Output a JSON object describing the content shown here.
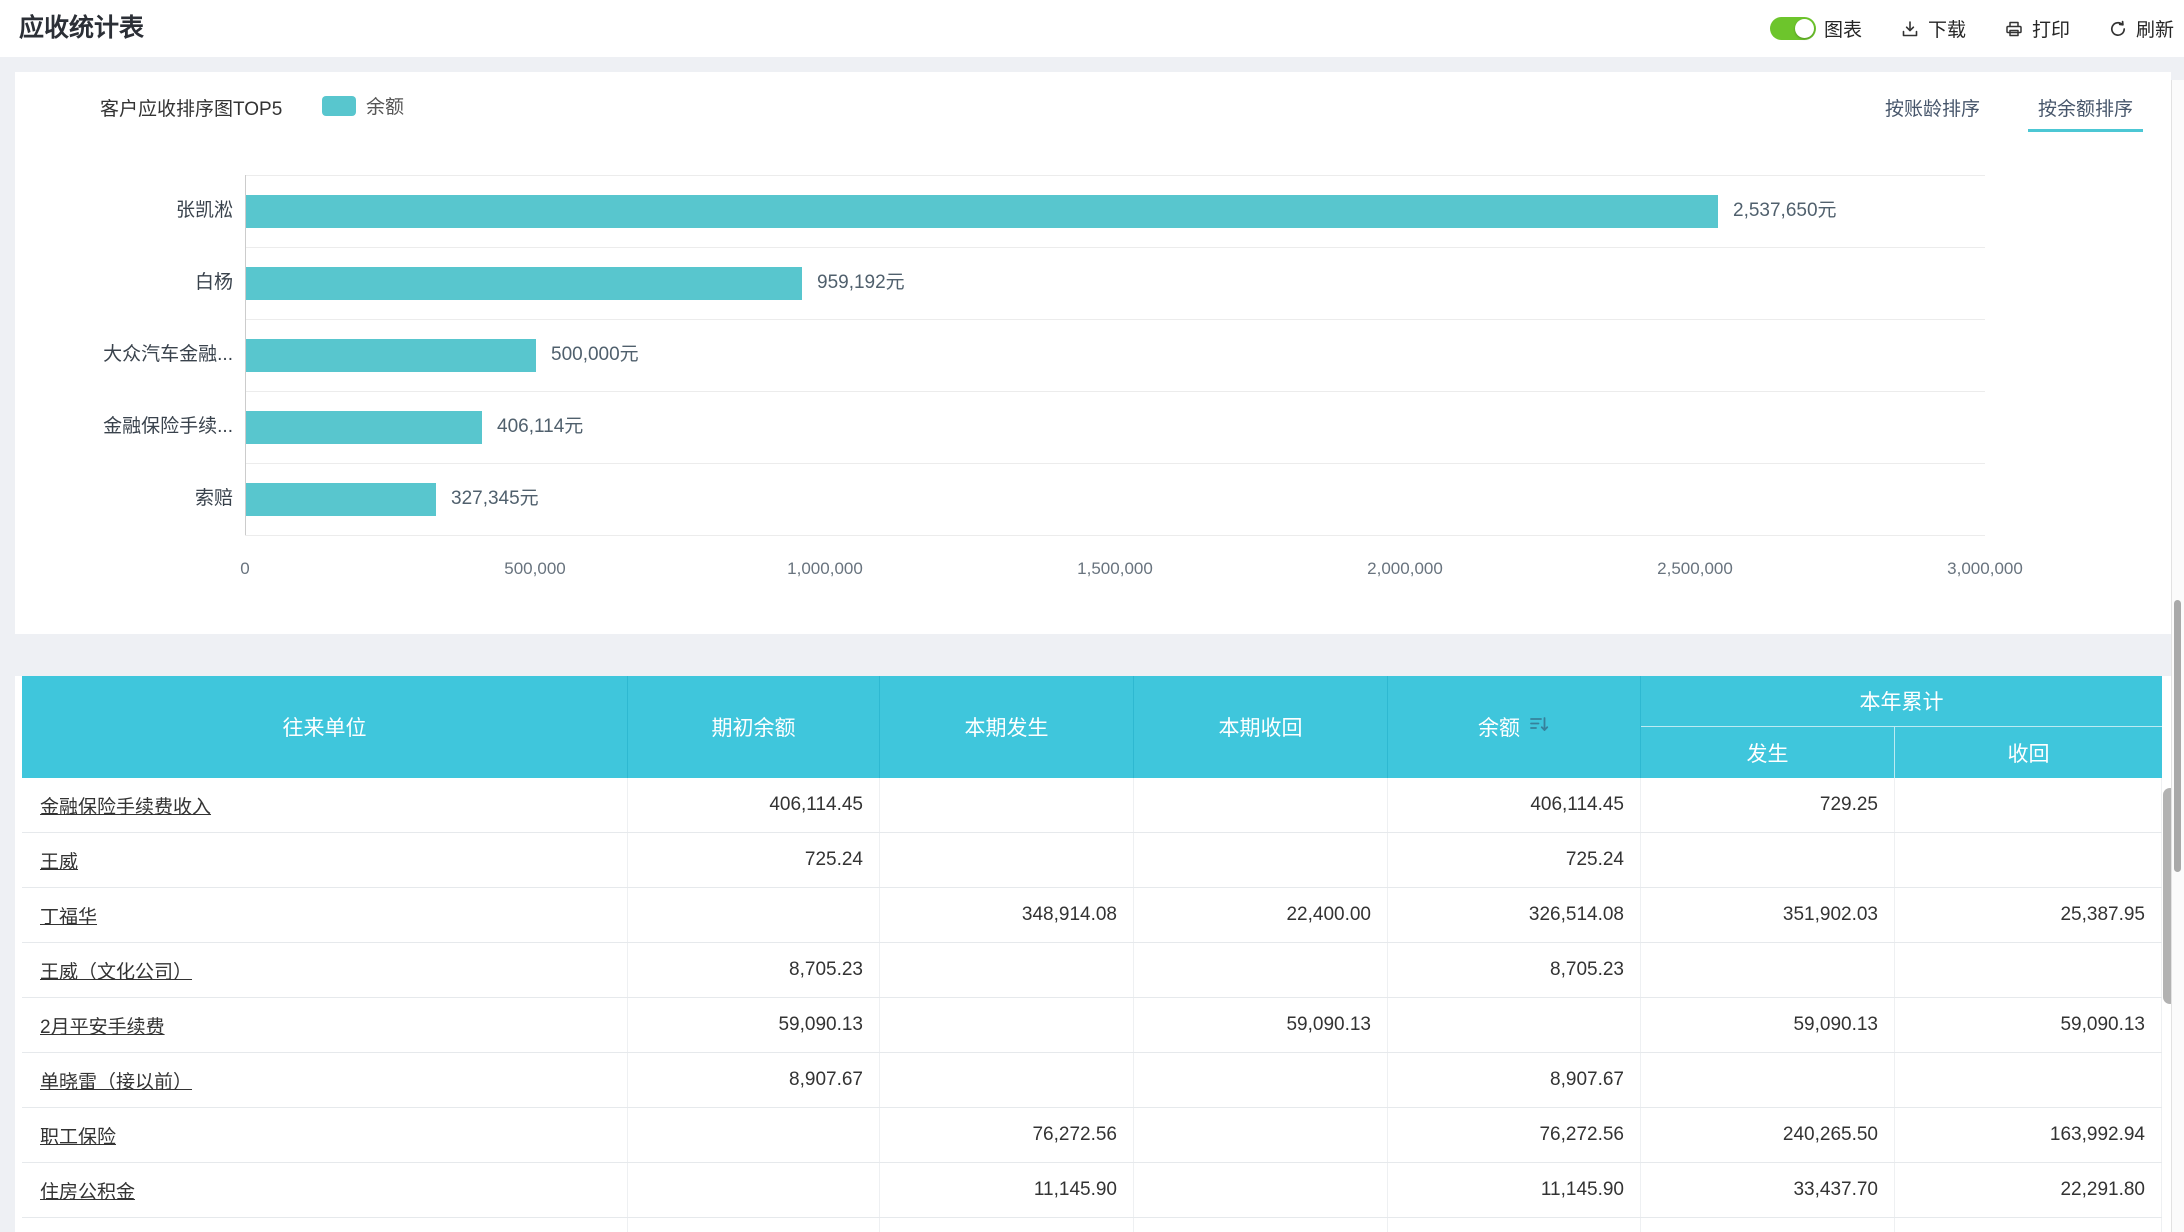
{
  "header": {
    "title": "应收统计表",
    "toggle_label": "图表",
    "download_label": "下载",
    "print_label": "打印",
    "refresh_label": "刷新"
  },
  "chart": {
    "sort_tabs": [
      {
        "label": "按账龄排序",
        "active": false
      },
      {
        "label": "按余额排序",
        "active": true
      }
    ]
  },
  "chart_data": {
    "type": "bar",
    "orientation": "horizontal",
    "title": "客户应收排序图TOP5",
    "legend": "余额",
    "categories": [
      "张凯淞",
      "白杨",
      "大众汽车金融...",
      "金融保险手续...",
      "索赔"
    ],
    "values": [
      2537650,
      959192,
      500000,
      406114,
      327345
    ],
    "value_labels": [
      "2,537,650元",
      "959,192元",
      "500,000元",
      "406,114元",
      "327,345元"
    ],
    "xlim": [
      0,
      3000000
    ],
    "x_ticks": [
      "0",
      "500,000",
      "1,000,000",
      "1,500,000",
      "2,000,000",
      "2,500,000",
      "3,000,000"
    ],
    "grid": "horizontal band lines only",
    "legend_position": "top-left",
    "bar_color": "#58c6ce"
  },
  "table": {
    "header": {
      "company": "往来单位",
      "opening_balance": "期初余额",
      "current_incurred": "本期发生",
      "current_received": "本期收回",
      "balance": "余额",
      "ytd_total": "本年累计",
      "ytd_incurred": "发生",
      "ytd_received": "收回"
    },
    "rows": [
      {
        "name": "金融保险手续费收入",
        "opening": "406,114.45",
        "incurred": "",
        "received": "",
        "balance": "406,114.45",
        "ytd_incurred": "729.25",
        "ytd_received": ""
      },
      {
        "name": "王威",
        "opening": "725.24",
        "incurred": "",
        "received": "",
        "balance": "725.24",
        "ytd_incurred": "",
        "ytd_received": ""
      },
      {
        "name": "丁福华",
        "opening": "",
        "incurred": "348,914.08",
        "received": "22,400.00",
        "balance": "326,514.08",
        "ytd_incurred": "351,902.03",
        "ytd_received": "25,387.95"
      },
      {
        "name": "王威（文化公司）",
        "opening": "8,705.23",
        "incurred": "",
        "received": "",
        "balance": "8,705.23",
        "ytd_incurred": "",
        "ytd_received": ""
      },
      {
        "name": "2月平安手续费",
        "opening": "59,090.13",
        "incurred": "",
        "received": "59,090.13",
        "balance": "",
        "ytd_incurred": "59,090.13",
        "ytd_received": "59,090.13"
      },
      {
        "name": "单晓雷（接以前）",
        "opening": "8,907.67",
        "incurred": "",
        "received": "",
        "balance": "8,907.67",
        "ytd_incurred": "",
        "ytd_received": ""
      },
      {
        "name": "职工保险",
        "opening": "",
        "incurred": "76,272.56",
        "received": "",
        "balance": "76,272.56",
        "ytd_incurred": "240,265.50",
        "ytd_received": "163,992.94"
      },
      {
        "name": "住房公积金",
        "opening": "",
        "incurred": "11,145.90",
        "received": "",
        "balance": "11,145.90",
        "ytd_incurred": "33,437.70",
        "ytd_received": "22,291.80"
      }
    ]
  },
  "colors": {
    "bar": "#58c6ce",
    "table_header_bg": "#3fc6dc",
    "toggle_on": "#6dc52c",
    "active_tab_underline": "#4cc7d4",
    "page_background": "#eef0f4"
  }
}
